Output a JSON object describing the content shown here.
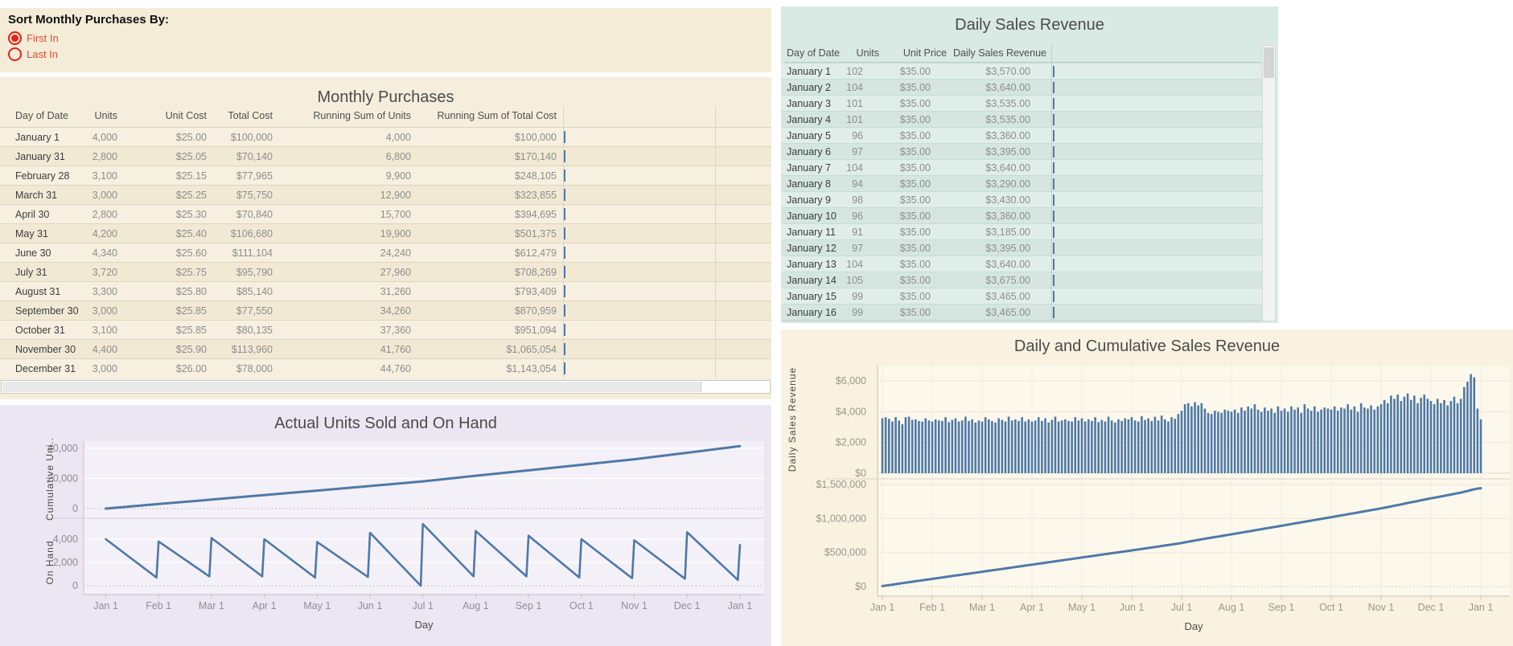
{
  "sort_panel": {
    "title": "Sort Monthly Purchases By:",
    "options": [
      {
        "label": "First In",
        "selected": true
      },
      {
        "label": "Last In",
        "selected": false
      }
    ],
    "accent_color": "#e3231a",
    "label_color": "#d94f33"
  },
  "monthly_purchases": {
    "title": "Monthly Purchases",
    "columns": [
      "Day of Date",
      "Units",
      "Unit Cost",
      "Total Cost",
      "Running Sum of Units",
      "Running Sum of Total Cost"
    ],
    "rows": [
      [
        "January 1",
        "4,000",
        "$25.00",
        "$100,000",
        "4,000",
        "$100,000"
      ],
      [
        "January 31",
        "2,800",
        "$25.05",
        "$70,140",
        "6,800",
        "$170,140"
      ],
      [
        "February 28",
        "3,100",
        "$25.15",
        "$77,965",
        "9,900",
        "$248,105"
      ],
      [
        "March 31",
        "3,000",
        "$25.25",
        "$75,750",
        "12,900",
        "$323,855"
      ],
      [
        "April 30",
        "2,800",
        "$25.30",
        "$70,840",
        "15,700",
        "$394,695"
      ],
      [
        "May 31",
        "4,200",
        "$25.40",
        "$106,680",
        "19,900",
        "$501,375"
      ],
      [
        "June 30",
        "4,340",
        "$25.60",
        "$111,104",
        "24,240",
        "$612,479"
      ],
      [
        "July 31",
        "3,720",
        "$25.75",
        "$95,790",
        "27,960",
        "$708,269"
      ],
      [
        "August 31",
        "3,300",
        "$25.80",
        "$85,140",
        "31,260",
        "$793,409"
      ],
      [
        "September 30",
        "3,000",
        "$25.85",
        "$77,550",
        "34,260",
        "$870,959"
      ],
      [
        "October 31",
        "3,100",
        "$25.85",
        "$80,135",
        "37,360",
        "$951,094"
      ],
      [
        "November 30",
        "4,400",
        "$25.90",
        "$113,960",
        "41,760",
        "$1,065,054"
      ],
      [
        "December 31",
        "3,000",
        "$26.00",
        "$78,000",
        "44,760",
        "$1,143,054"
      ]
    ]
  },
  "daily_sales": {
    "title": "Daily Sales Revenue",
    "columns": [
      "Day of Date",
      "Units",
      "Unit Price",
      "Daily Sales Revenue"
    ],
    "rows": [
      [
        "January 1",
        "102",
        "$35.00",
        "$3,570.00"
      ],
      [
        "January 2",
        "104",
        "$35.00",
        "$3,640.00"
      ],
      [
        "January 3",
        "101",
        "$35.00",
        "$3,535.00"
      ],
      [
        "January 4",
        "101",
        "$35.00",
        "$3,535.00"
      ],
      [
        "January 5",
        "96",
        "$35.00",
        "$3,360.00"
      ],
      [
        "January 6",
        "97",
        "$35.00",
        "$3,395.00"
      ],
      [
        "January 7",
        "104",
        "$35.00",
        "$3,640.00"
      ],
      [
        "January 8",
        "94",
        "$35.00",
        "$3,290.00"
      ],
      [
        "January 9",
        "98",
        "$35.00",
        "$3,430.00"
      ],
      [
        "January 10",
        "96",
        "$35.00",
        "$3,360.00"
      ],
      [
        "January 11",
        "91",
        "$35.00",
        "$3,185.00"
      ],
      [
        "January 12",
        "97",
        "$35.00",
        "$3,395.00"
      ],
      [
        "January 13",
        "104",
        "$35.00",
        "$3,640.00"
      ],
      [
        "January 14",
        "105",
        "$35.00",
        "$3,675.00"
      ],
      [
        "January 15",
        "99",
        "$35.00",
        "$3,465.00"
      ],
      [
        "January 16",
        "99",
        "$35.00",
        "$3,465.00"
      ]
    ]
  },
  "chart_data": [
    {
      "id": "cumulative_units",
      "type": "line",
      "title": "Actual Units Sold and On Hand",
      "ylabel": "Cumulative Uni..",
      "xlabel": "Day",
      "x_ticklabels": [
        "Jan 1",
        "Feb 1",
        "Mar 1",
        "Apr 1",
        "May 1",
        "Jun 1",
        "Jul 1",
        "Aug 1",
        "Sep 1",
        "Oct 1",
        "Nov 1",
        "Dec 1",
        "Jan 1"
      ],
      "yticks": [
        0,
        20000,
        40000
      ],
      "ytick_labels": [
        "0",
        "20,000",
        "40,000"
      ],
      "ylim": [
        -2000,
        46000
      ],
      "points_month_value": [
        [
          0,
          0
        ],
        [
          1,
          3100
        ],
        [
          2,
          5950
        ],
        [
          3,
          9000
        ],
        [
          4,
          11950
        ],
        [
          5,
          15000
        ],
        [
          6,
          18100
        ],
        [
          7,
          21800
        ],
        [
          8,
          25400
        ],
        [
          9,
          29050
        ],
        [
          10,
          32750
        ],
        [
          11,
          37050
        ],
        [
          12,
          41500
        ]
      ],
      "line_color": "#4e79a7",
      "grid": true,
      "legend": "none"
    },
    {
      "id": "on_hand",
      "type": "line",
      "ylabel": "On Hand",
      "xlabel": "Day",
      "x_ticklabels": [
        "Jan 1",
        "Feb 1",
        "Mar 1",
        "Apr 1",
        "May 1",
        "Jun 1",
        "Jul 1",
        "Aug 1",
        "Sep 1",
        "Oct 1",
        "Nov 1",
        "Dec 1",
        "Jan 1"
      ],
      "yticks": [
        0,
        2000,
        4000
      ],
      "ytick_labels": [
        "0",
        "2,000",
        "4,000"
      ],
      "ylim": [
        -400,
        5600
      ],
      "points_month_value": [
        [
          0,
          4000
        ],
        [
          0.96,
          700
        ],
        [
          1,
          3800
        ],
        [
          1.96,
          800
        ],
        [
          2,
          4100
        ],
        [
          2.96,
          800
        ],
        [
          3,
          4000
        ],
        [
          3.96,
          700
        ],
        [
          4,
          3750
        ],
        [
          4.96,
          750
        ],
        [
          5,
          4550
        ],
        [
          5.96,
          0
        ],
        [
          6,
          5300
        ],
        [
          6.96,
          800
        ],
        [
          7,
          4700
        ],
        [
          7.96,
          800
        ],
        [
          8,
          4300
        ],
        [
          8.96,
          700
        ],
        [
          9,
          4000
        ],
        [
          9.96,
          650
        ],
        [
          10,
          3900
        ],
        [
          10.96,
          600
        ],
        [
          11,
          4600
        ],
        [
          11.96,
          500
        ],
        [
          12,
          3500
        ]
      ],
      "line_color": "#4e79a7",
      "grid": true,
      "legend": "none"
    },
    {
      "id": "daily_revenue_bars",
      "type": "bar",
      "title": "Daily and Cumulative Sales Revenue",
      "ylabel": "Daily Sales Revenue",
      "xlabel": "Day",
      "x_ticklabels": [
        "Jan 1",
        "Feb 1",
        "Mar 1",
        "Apr 1",
        "May 1",
        "Jun 1",
        "Jul 1",
        "Aug 1",
        "Sep 1",
        "Oct 1",
        "Nov 1",
        "Dec 1",
        "Jan 1"
      ],
      "yticks": [
        0,
        2000,
        4000,
        6000
      ],
      "ytick_labels": [
        "$0",
        "$2,000",
        "$4,000",
        "$6,000"
      ],
      "ylim": [
        0,
        7000
      ],
      "bar_color": "#4e79a7",
      "values_sampled_every_2_days": [
        3570,
        3640,
        3535,
        3360,
        3640,
        3430,
        3185,
        3640,
        3675,
        3465,
        3500,
        3395,
        3360,
        3570,
        3430,
        3360,
        3500,
        3430,
        3395,
        3640,
        3325,
        3465,
        3570,
        3360,
        3430,
        3675,
        3395,
        3500,
        3290,
        3430,
        3360,
        3640,
        3500,
        3395,
        3290,
        3570,
        3465,
        3360,
        3675,
        3430,
        3500,
        3395,
        3640,
        3360,
        3500,
        3360,
        3430,
        3640,
        3395,
        3570,
        3290,
        3465,
        3675,
        3360,
        3430,
        3500,
        3395,
        3360,
        3640,
        3430,
        3570,
        3360,
        3500,
        3395,
        3640,
        3325,
        3465,
        3360,
        3675,
        3430,
        3290,
        3500,
        3395,
        3570,
        3500,
        3640,
        3430,
        3360,
        3710,
        3465,
        3570,
        3395,
        3675,
        3430,
        3745,
        3500,
        3360,
        3640,
        3535,
        3850,
        4060,
        4480,
        4550,
        4340,
        4620,
        4410,
        4550,
        4200,
        3920,
        3850,
        4060,
        3990,
        3920,
        4130,
        4060,
        3990,
        4130,
        3920,
        4270,
        4060,
        4340,
        4200,
        4480,
        4130,
        3990,
        4270,
        4060,
        4200,
        3920,
        4340,
        4060,
        4200,
        3990,
        4340,
        4130,
        4270,
        3920,
        4480,
        4200,
        4060,
        4340,
        3990,
        4130,
        4270,
        4200,
        4130,
        4340,
        4060,
        4270,
        4200,
        4480,
        4130,
        4340,
        3990,
        4550,
        4270,
        4200,
        4410,
        4130,
        4340,
        4480,
        4760,
        4550,
        5040,
        4830,
        5110,
        4690,
        4970,
        5180,
        4760,
        5040,
        4550,
        4900,
        5110,
        4830,
        4690,
        4480,
        4830,
        4550,
        4760,
        4410,
        4690,
        4970,
        4550,
        4830,
        5600,
        5950,
        6440,
        6230,
        4200,
        3500
      ],
      "grid": true,
      "legend": "none"
    },
    {
      "id": "cumulative_revenue",
      "type": "line",
      "ylabel": "",
      "xlabel": "Day",
      "x_ticklabels": [
        "Jan 1",
        "Feb 1",
        "Mar 1",
        "Apr 1",
        "May 1",
        "Jun 1",
        "Jul 1",
        "Aug 1",
        "Sep 1",
        "Oct 1",
        "Nov 1",
        "Dec 1",
        "Jan 1"
      ],
      "yticks": [
        0,
        500000,
        1000000,
        1500000
      ],
      "ytick_labels": [
        "$0",
        "$500,000",
        "$1,000,000",
        "$1,500,000"
      ],
      "ylim": [
        0,
        1600000
      ],
      "start_value": 0,
      "end_value": 1454000,
      "note": "cumulative sum of daily sales revenue over the year",
      "line_color": "#4e79a7",
      "grid": true,
      "legend": "none"
    }
  ]
}
